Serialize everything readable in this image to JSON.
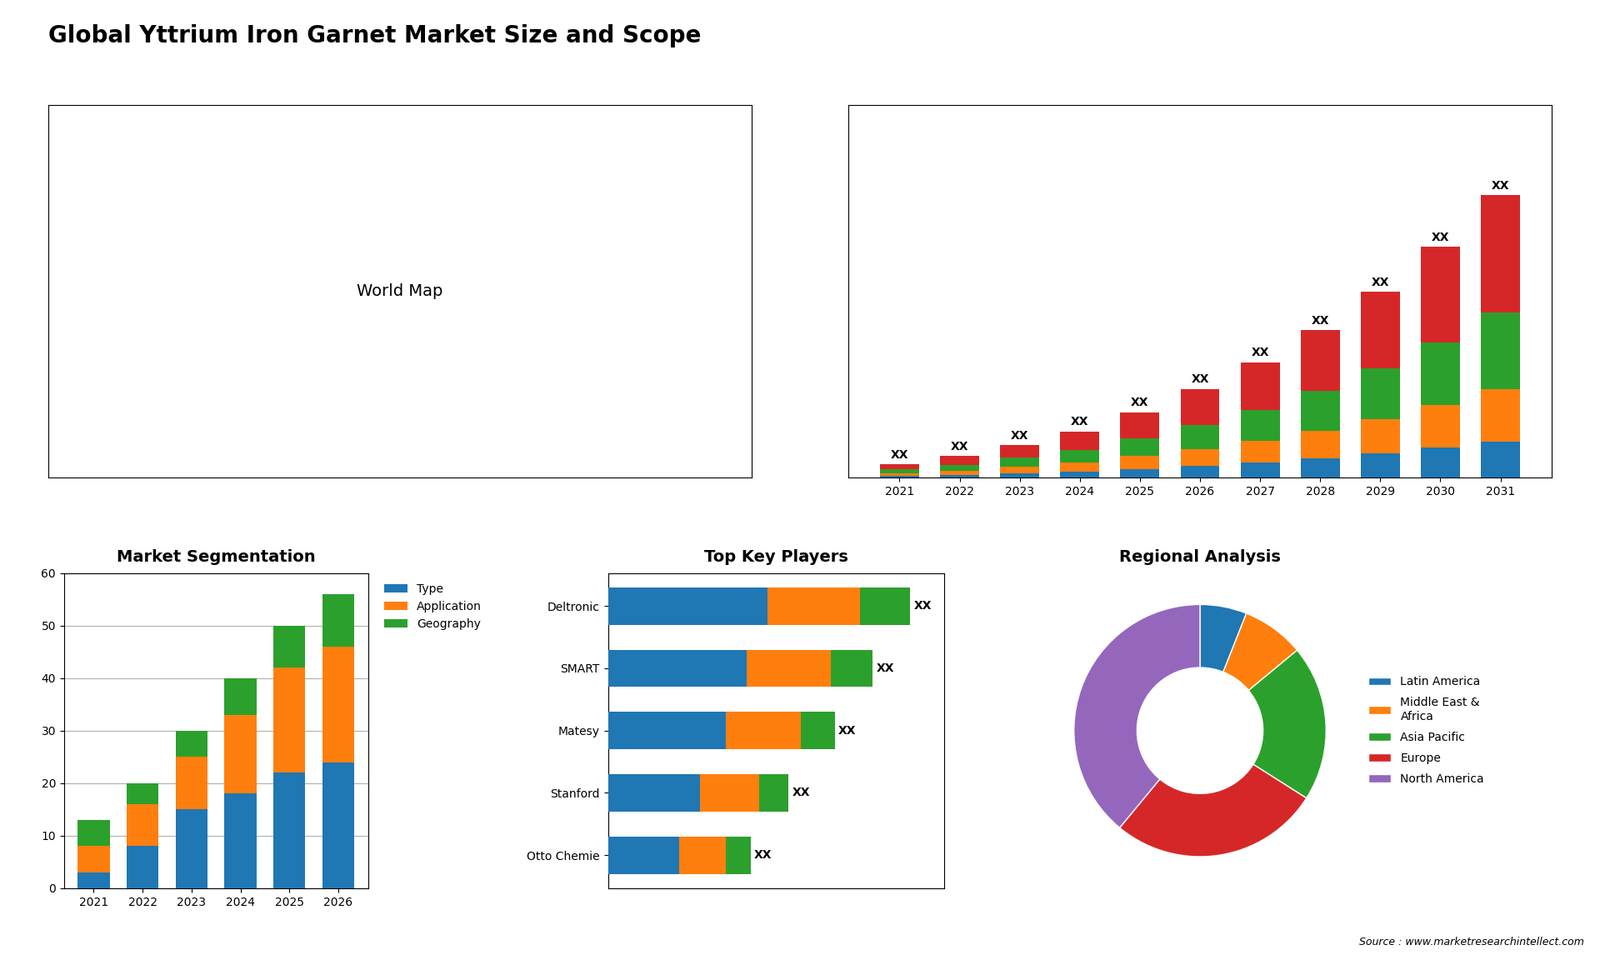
{
  "title": "Global Yttrium Iron Garnet Market Size and Scope",
  "annotations": [
    "Source : www.marketresearchintellect.com"
  ],
  "chart_data": [
    {
      "type": "text",
      "annotations": [
        "World Map"
      ]
    },
    {
      "type": "bar",
      "stacked": true,
      "categories": [
        "2021",
        "2022",
        "2023",
        "2024",
        "2025",
        "2026",
        "2027",
        "2028",
        "2029",
        "2030",
        "2031"
      ],
      "series": [
        {
          "values": [
            0.3,
            0.5,
            0.8,
            1.1,
            1.6,
            2.2,
            2.8,
            3.6,
            4.5,
            5.6,
            6.8
          ]
        },
        {
          "values": [
            0.5,
            0.8,
            1.2,
            1.7,
            2.4,
            3.2,
            4.1,
            5.2,
            6.5,
            8.0,
            9.8
          ]
        },
        {
          "values": [
            0.7,
            1.1,
            1.7,
            2.4,
            3.3,
            4.5,
            5.8,
            7.5,
            9.5,
            11.8,
            14.5
          ]
        },
        {
          "values": [
            1.0,
            1.6,
            2.4,
            3.5,
            5.0,
            6.8,
            9.0,
            11.5,
            14.5,
            18.0,
            22.0
          ],
          "value_labels": [
            "XX",
            "XX",
            "XX",
            "XX",
            "XX",
            "XX",
            "XX",
            "XX",
            "XX",
            "XX",
            "XX"
          ]
        }
      ],
      "ylim": [
        0,
        70.092
      ],
      "tick_labels": "x"
    },
    {
      "type": "bar",
      "title": "Market Segmentation",
      "stacked": true,
      "categories": [
        "2021",
        "2022",
        "2023",
        "2024",
        "2025",
        "2026"
      ],
      "series": [
        {
          "name": "Type",
          "values": [
            3,
            8,
            15,
            18,
            22,
            24
          ]
        },
        {
          "name": "Application",
          "values": [
            5,
            8,
            10,
            15,
            20,
            22
          ]
        },
        {
          "name": "Geography",
          "values": [
            5,
            4,
            5,
            7,
            8,
            10
          ]
        }
      ],
      "ylim": [
        0,
        60
      ],
      "yticks": [
        0,
        10,
        20,
        30,
        40,
        50,
        60
      ],
      "grid": "y",
      "legend": "upper left"
    },
    {
      "type": "bar",
      "title": "Top Key Players",
      "orientation": "horizontal",
      "stacked": true,
      "categories": [
        "Deltronic",
        "SMART",
        "Matesy",
        "Stanford",
        "Otto Chemie"
      ],
      "series": [
        {
          "values": [
            0.38,
            0.33,
            0.28,
            0.22,
            0.17
          ]
        },
        {
          "values": [
            0.22,
            0.2,
            0.18,
            0.14,
            0.11
          ]
        },
        {
          "values": [
            0.12,
            0.1,
            0.08,
            0.07,
            0.06
          ],
          "value_labels": [
            "XX",
            "XX",
            "XX",
            "XX",
            "XX"
          ]
        }
      ],
      "xlim": [
        0,
        0.8
      ],
      "tick_labels": "y"
    },
    {
      "type": "pie",
      "title": "Regional Analysis",
      "categories": [
        "Latin America",
        "Middle East &\nAfrica",
        "Asia Pacific",
        "Europe",
        "North America"
      ],
      "values": [
        6,
        8,
        20,
        27,
        39
      ],
      "legend": "center left"
    }
  ]
}
